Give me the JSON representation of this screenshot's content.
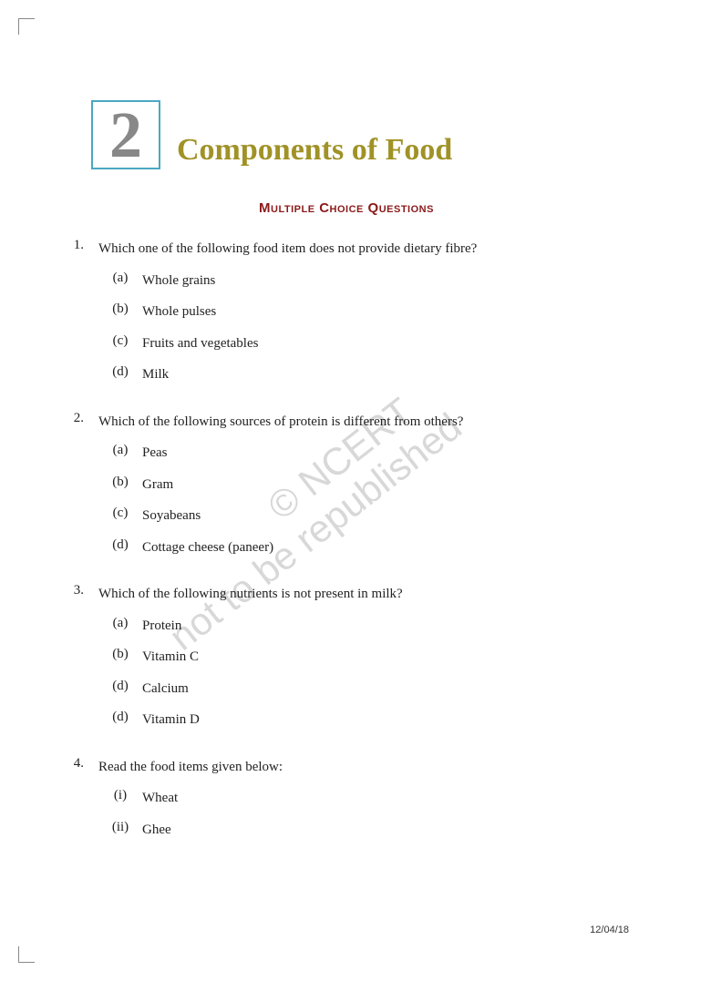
{
  "chapter": {
    "number": "2",
    "title": "Components of Food",
    "number_box_border_color": "#4aa8c4",
    "number_color": "#888888",
    "title_color": "#a09226"
  },
  "section_heading": "Multiple Choice Questions",
  "section_heading_color": "#8b1a1a",
  "questions": [
    {
      "num": "1.",
      "text": "Which one of the following food item does not provide dietary fibre?",
      "justify": false,
      "options": [
        {
          "label": "(a)",
          "text": "Whole grains"
        },
        {
          "label": "(b)",
          "text": "Whole pulses"
        },
        {
          "label": "(c)",
          "text": "Fruits and vegetables"
        },
        {
          "label": "(d)",
          "text": "Milk"
        }
      ]
    },
    {
      "num": "2.",
      "text": "Which of the following sources of protein is different from others?",
      "justify": true,
      "options": [
        {
          "label": "(a)",
          "text": "Peas"
        },
        {
          "label": "(b)",
          "text": "Gram"
        },
        {
          "label": "(c)",
          "text": "Soyabeans"
        },
        {
          "label": "(d)",
          "text": "Cottage cheese (paneer)"
        }
      ]
    },
    {
      "num": "3.",
      "text": "Which of the following nutrients is not present in milk?",
      "justify": false,
      "options": [
        {
          "label": "(a)",
          "text": "Protein"
        },
        {
          "label": "(b)",
          "text": "Vitamin C"
        },
        {
          "label": "(d)",
          "text": "Calcium"
        },
        {
          "label": "(d)",
          "text": "Vitamin D"
        }
      ]
    },
    {
      "num": "4.",
      "text": "Read the food items given below:",
      "justify": false,
      "options": [
        {
          "label": "(i)",
          "text": "Wheat"
        },
        {
          "label": "(ii)",
          "text": "Ghee"
        }
      ]
    }
  ],
  "watermarks": {
    "w1": "© NCERT",
    "w2": "not to be republished"
  },
  "footer_date": "12/04/18",
  "colors": {
    "background": "#ffffff",
    "text": "#222222",
    "watermark": "#d8d8d8"
  }
}
